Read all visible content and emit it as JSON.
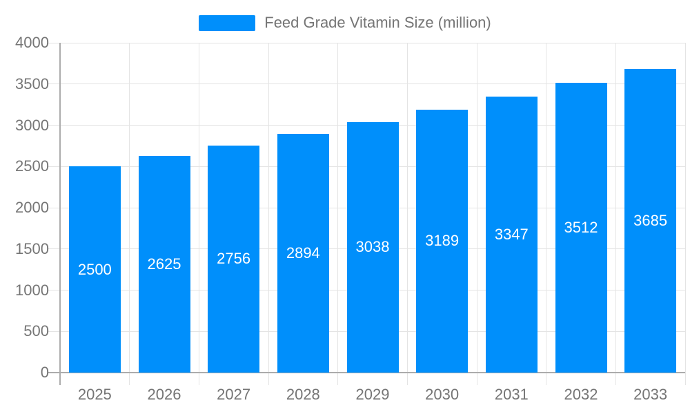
{
  "legend": {
    "label": "Feed Grade Vitamin Size (million)"
  },
  "colors": {
    "bar": "#008FFB",
    "bar_label": "#FFFFFF",
    "grid_line": "#E4E4E4",
    "axis_line": "#ACACAC",
    "category_tick": "#E4E4E4",
    "axis_label": "#757575",
    "legend_text": "#757575",
    "background": "#FFFFFF"
  },
  "chart_data": {
    "type": "bar",
    "title": "Feed Grade Vitamin Size (million)",
    "categories": [
      "2025",
      "2026",
      "2027",
      "2028",
      "2029",
      "2030",
      "2031",
      "2032",
      "2033"
    ],
    "series": [
      {
        "name": "Feed Grade Vitamin Size (million)",
        "values": [
          2500,
          2625,
          2756,
          2894,
          3038,
          3189,
          3347,
          3512,
          3685
        ]
      }
    ],
    "xlabel": "",
    "ylabel": "",
    "ylim": [
      0,
      4000
    ],
    "ytick_step": 500,
    "ytick_labels": [
      "0",
      "500",
      "1000",
      "1500",
      "2000",
      "2500",
      "3000",
      "3500",
      "4000"
    ],
    "grid": true,
    "legend_position": "top",
    "value_labels": "inside-center"
  }
}
